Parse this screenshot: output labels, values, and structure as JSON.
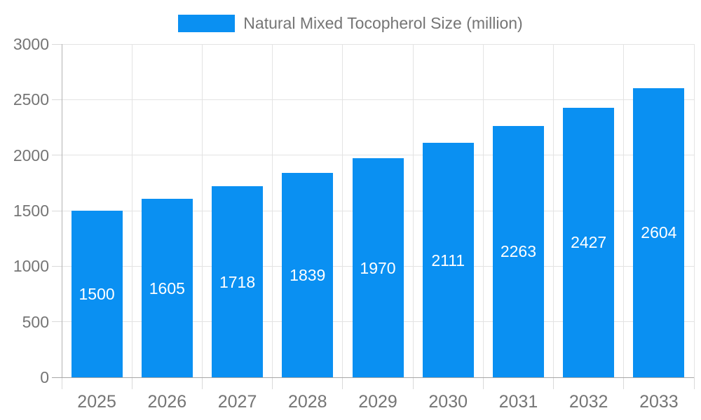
{
  "chart_data": {
    "type": "bar",
    "title": "Natural Mixed Tocopherol Size (million)",
    "legend": [
      {
        "label": "Natural Mixed Tocopherol Size (million)",
        "color": "#0a90f2"
      }
    ],
    "legend_position": "top-center",
    "categories": [
      "2025",
      "2026",
      "2027",
      "2028",
      "2029",
      "2030",
      "2031",
      "2032",
      "2033"
    ],
    "series": [
      {
        "name": "Natural Mixed Tocopherol Size (million)",
        "values": [
          1500,
          1605,
          1718,
          1839,
          1970,
          2111,
          2263,
          2427,
          2604
        ]
      }
    ],
    "value_labels_shown": true,
    "xlabel": "",
    "ylabel": "",
    "ylim": [
      0,
      3000
    ],
    "ytick_step": 500,
    "yticks": [
      0,
      500,
      1000,
      1500,
      2000,
      2500,
      3000
    ],
    "grid": true,
    "bar_color": "#0a90f2",
    "value_label_color": "#ffffff",
    "axis_text_color": "#757575",
    "grid_color": "#e3e3e3",
    "axis_line_color": "#b3b3b3"
  }
}
